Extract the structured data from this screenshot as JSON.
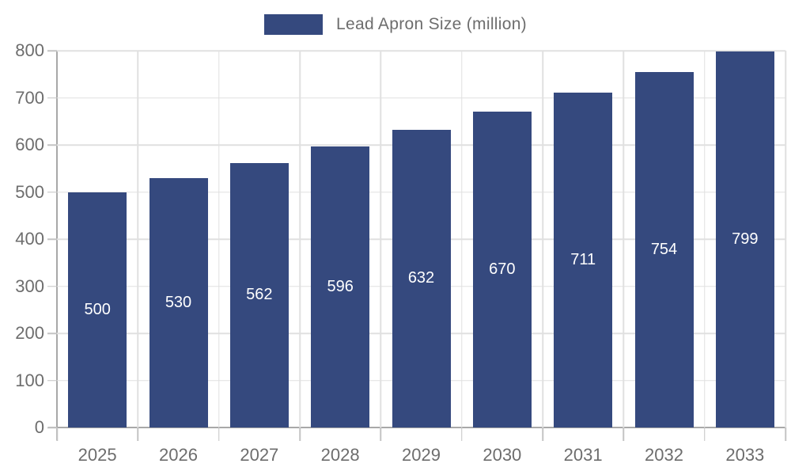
{
  "legend": {
    "label": "Lead Apron Size (million)",
    "swatch_color": "#35497E"
  },
  "chart_data": {
    "type": "bar",
    "title": "",
    "xlabel": "",
    "ylabel": "",
    "categories": [
      "2025",
      "2026",
      "2027",
      "2028",
      "2029",
      "2030",
      "2031",
      "2032",
      "2033"
    ],
    "series": [
      {
        "name": "Lead Apron Size (million)",
        "values": [
          500,
          530,
          562,
          596,
          632,
          670,
          711,
          754,
          799
        ]
      }
    ],
    "value_labels_shown": true,
    "ylim": [
      0,
      800
    ],
    "yticks": [
      0,
      100,
      200,
      300,
      400,
      500,
      600,
      700,
      800
    ],
    "grid": "both",
    "legend_position": "top-center",
    "colors": {
      "bar": "#35497E",
      "value_label": "#ffffff",
      "grid": "#e0e0e0",
      "axis": "#a8a8a8",
      "tick": "#c4c4c4",
      "tick_label": "#6d6d6d",
      "background": "#ffffff"
    }
  }
}
